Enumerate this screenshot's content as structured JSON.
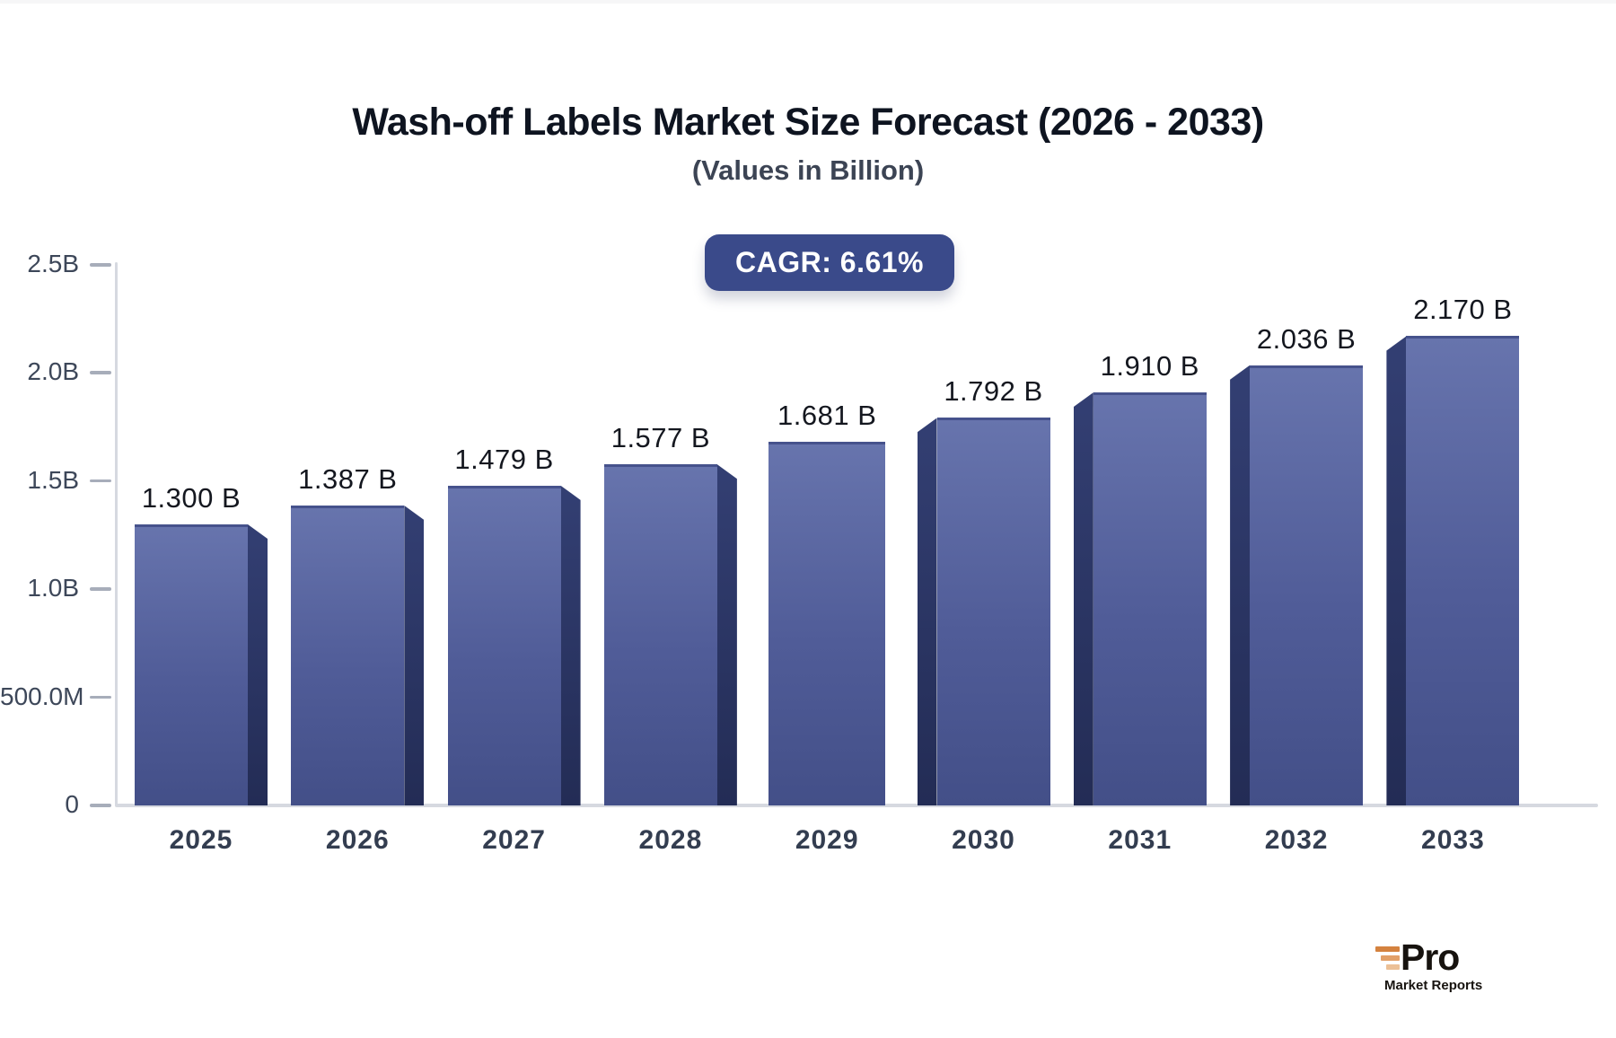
{
  "header": {
    "title": "Wash-off Labels Market Size Forecast (2026 - 2033)",
    "subtitle": "(Values in Billion)"
  },
  "badge": {
    "label": "CAGR: 6.61%",
    "bg_color": "#3a4a8a",
    "text_color": "#ffffff"
  },
  "chart_data": {
    "type": "bar",
    "title": "Wash-off Labels Market Size Forecast (2026 - 2033)",
    "subtitle": "(Values in Billion)",
    "unit": "Billion",
    "categories": [
      "2025",
      "2026",
      "2027",
      "2028",
      "2029",
      "2030",
      "2031",
      "2032",
      "2033"
    ],
    "values": [
      1.3,
      1.387,
      1.479,
      1.577,
      1.681,
      1.792,
      1.91,
      2.036,
      2.17
    ],
    "value_labels": [
      "1.300 B",
      "1.387 B",
      "1.479 B",
      "1.577 B",
      "1.681 B",
      "1.792 B",
      "1.910 B",
      "2.036 B",
      "2.170 B"
    ],
    "ylim": [
      0,
      2.5
    ],
    "yticks": [
      {
        "label": "0",
        "value": 0
      },
      {
        "label": "500.0M",
        "value": 0.5
      },
      {
        "label": "1.0B",
        "value": 1.0
      },
      {
        "label": "1.5B",
        "value": 1.5
      },
      {
        "label": "2.0B",
        "value": 2.0
      },
      {
        "label": "2.5B",
        "value": 2.5
      }
    ],
    "xlabel": "",
    "ylabel": "",
    "grid": false,
    "legend": false,
    "colors": {
      "bar_face_top": "#6774ad",
      "bar_face_mid": "#505c98",
      "bar_face_bottom": "#434f88",
      "bar_side_top": "#333f73",
      "bar_side_bottom": "#232c55",
      "axis_line": "#d6d9e0",
      "tick_dash": "#a7adba",
      "value_label_color": "#14171f",
      "category_label_color": "#333d50"
    }
  },
  "logo": {
    "name": "Pro",
    "tagline": "Market Reports",
    "accent_color": "#d4823f"
  }
}
